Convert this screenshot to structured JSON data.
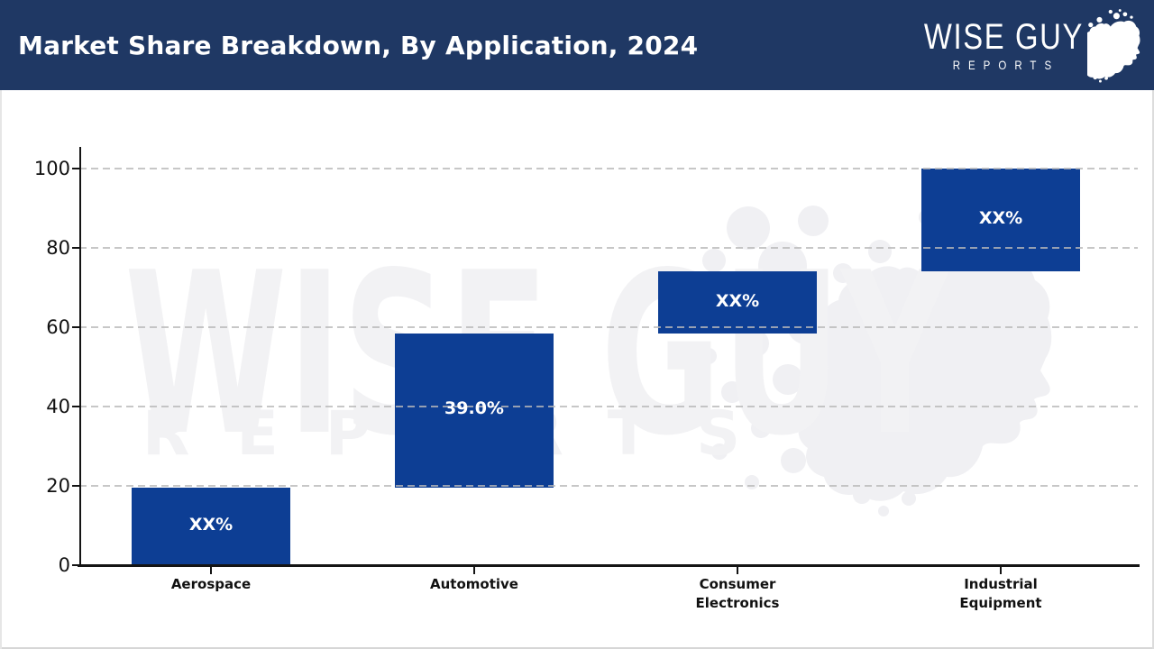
{
  "header": {
    "title": "Market Share Breakdown, By Application, 2024",
    "logo": {
      "line1": "WISE GUY",
      "line2": "REPORTS"
    }
  },
  "watermark": {
    "line1": "WISE GUY",
    "line2": "REPORTS"
  },
  "chart_data": {
    "type": "bar",
    "subtype": "waterfall",
    "title": "Market Share Breakdown, By Application, 2024",
    "categories": [
      "Aerospace",
      "Automotive",
      "Consumer\nElectronics",
      "Industrial\nEquipment"
    ],
    "bars": [
      {
        "category": "Aerospace",
        "start": 0,
        "end": 19.5,
        "label": "XX%"
      },
      {
        "category": "Automotive",
        "start": 19.5,
        "end": 58.5,
        "label": "39.0%"
      },
      {
        "category": "Consumer Electronics",
        "start": 58.5,
        "end": 74,
        "label": "XX%"
      },
      {
        "category": "Industrial Equipment",
        "start": 74,
        "end": 100,
        "label": "XX%"
      }
    ],
    "y_ticks": [
      0,
      20,
      40,
      60,
      80,
      100
    ],
    "ylim": [
      0,
      105
    ],
    "xlabel": "",
    "ylabel": "",
    "legend": null,
    "grid": "horizontal dashed, drawn above bars",
    "value_unit": "%"
  },
  "colors": {
    "header_bg": "#1f3864",
    "bar": "#0d3e94",
    "grid": "#c9c9c9",
    "axis": "#141414",
    "watermark": "#f2f2f4",
    "label_text": "#ffffff",
    "tick_text": "#111111"
  }
}
